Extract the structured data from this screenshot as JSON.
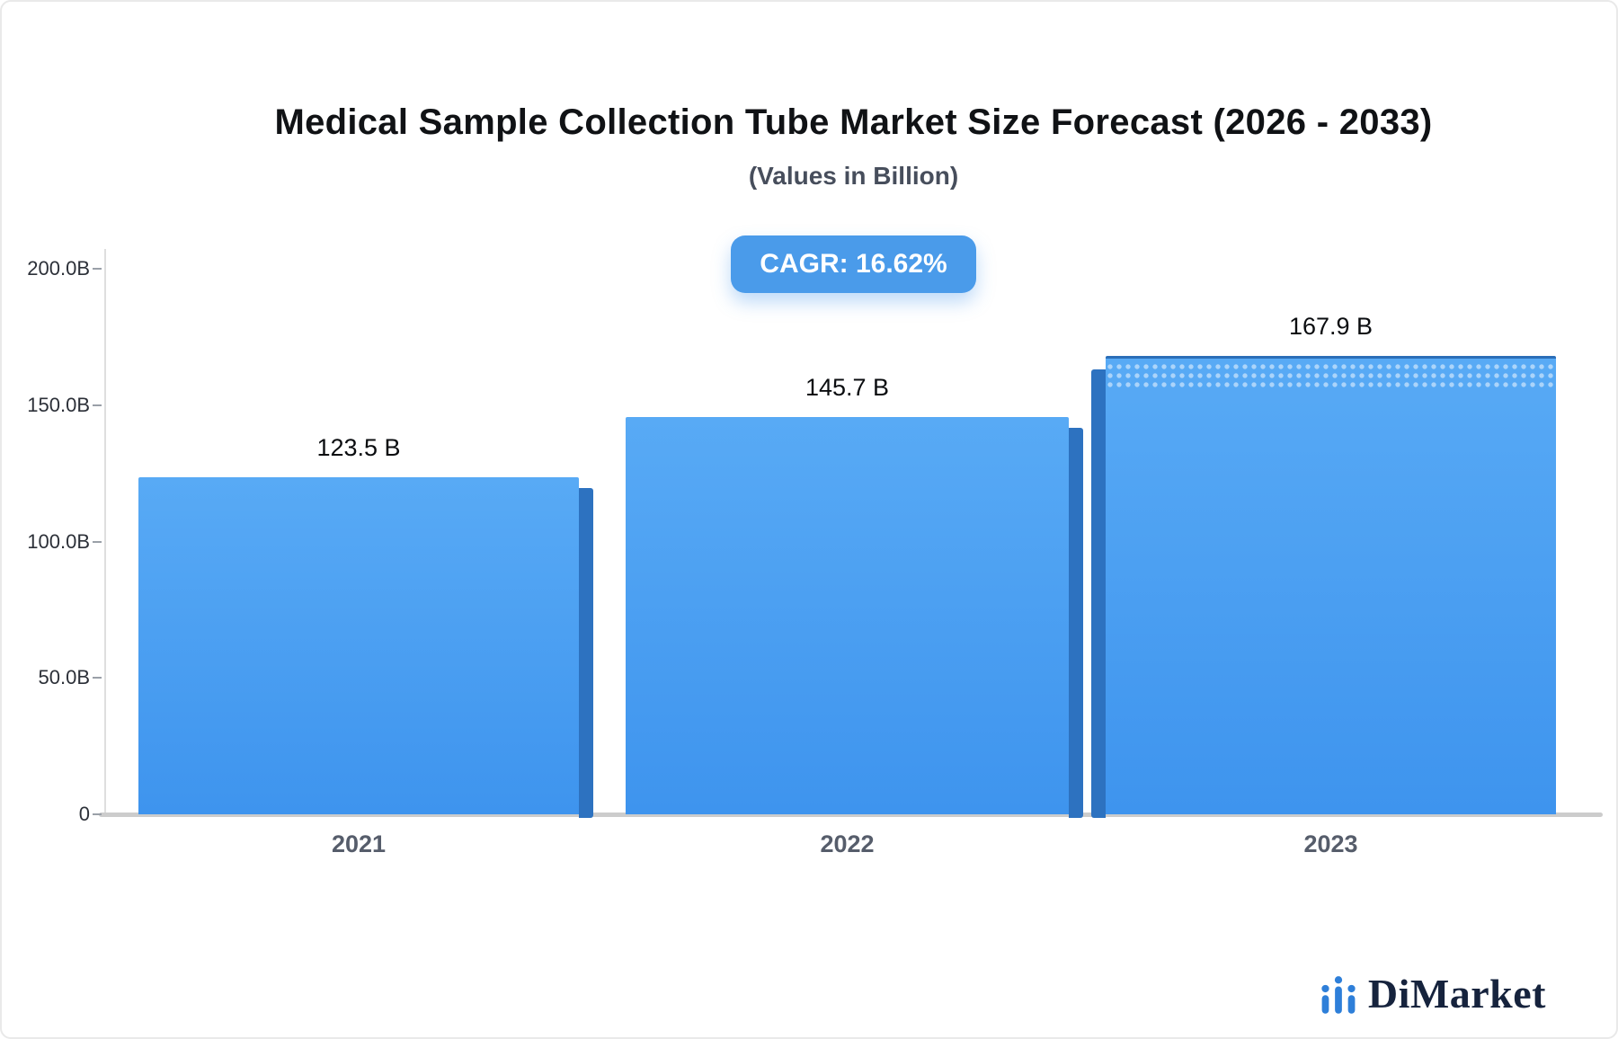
{
  "title": "Medical Sample Collection Tube Market Size Forecast (2026 - 2033)",
  "subtitle": "(Values in Billion)",
  "badge": {
    "label": "CAGR: 16.62%",
    "color": "#4a9bea"
  },
  "chart_data": {
    "type": "bar",
    "title": "Medical Sample Collection Tube Market Size Forecast (2026 - 2033)",
    "subtitle": "(Values in Billion)",
    "categories": [
      "2021",
      "2022",
      "2023"
    ],
    "values": [
      123.5,
      145.7,
      167.9
    ],
    "value_labels": [
      "123.5 B",
      "145.7 B",
      "167.9 B"
    ],
    "xlabel": "",
    "ylabel": "",
    "ylim": [
      0,
      200
    ],
    "y_ticks": [
      {
        "value": 0,
        "label": "0"
      },
      {
        "value": 50,
        "label": "50.0B"
      },
      {
        "value": 100,
        "label": "100.0B"
      },
      {
        "value": 150,
        "label": "150.0B"
      },
      {
        "value": 200,
        "label": "200.0B"
      }
    ],
    "grid": false,
    "legend": false,
    "bar_color_top": "#58aaf5",
    "bar_color_bottom": "#3e94ee",
    "bar_color_dark": "#2d72c0",
    "annotation": "CAGR: 16.62%"
  },
  "logo": {
    "text": "DiMarket",
    "icon": "bar-chart-icon",
    "icon_color": "#2e7fd9",
    "text_color": "#16233d"
  }
}
